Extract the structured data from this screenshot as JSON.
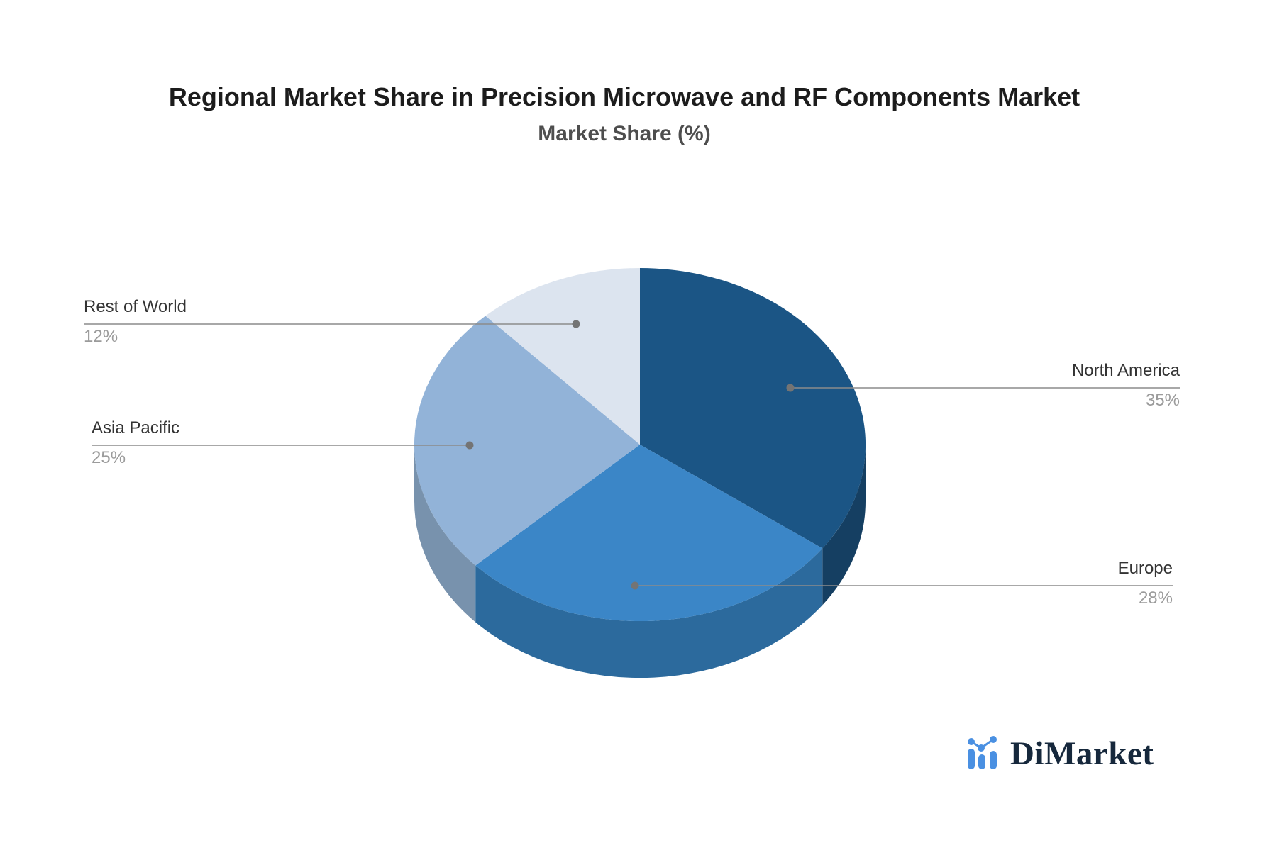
{
  "title": "Regional Market Share in Precision Microwave and RF Components Market",
  "subtitle": "Market Share (%)",
  "watermark": {
    "brand": "DiMarket"
  },
  "chart_data": {
    "type": "pie",
    "style": "3d-pie",
    "unit": "%",
    "title": "Regional Market Share in Precision Microwave and RF Components Market",
    "subtitle": "Market Share (%)",
    "start_angle_deg_clockwise_from_top": 0,
    "legend_position": "callout-labels-left-right",
    "label_text_color": "#333333",
    "pct_text_color": "#9b9b9b",
    "leader_line_color": "#8b8b8b",
    "leader_dot_color": "#747474",
    "slices": [
      {
        "label": "North America",
        "value": 35,
        "pct_label": "35%",
        "color": "#1b5585",
        "side_color": "#153f62"
      },
      {
        "label": "Europe",
        "value": 28,
        "pct_label": "28%",
        "color": "#3b86c7",
        "side_color": "#2c6a9d"
      },
      {
        "label": "Asia Pacific",
        "value": 25,
        "pct_label": "25%",
        "color": "#92b3d8",
        "side_color": "#7892ad"
      },
      {
        "label": "Rest of World",
        "value": 12,
        "pct_label": "12%",
        "color": "#dce4ef",
        "side_color": "#b9c7d9"
      }
    ]
  }
}
